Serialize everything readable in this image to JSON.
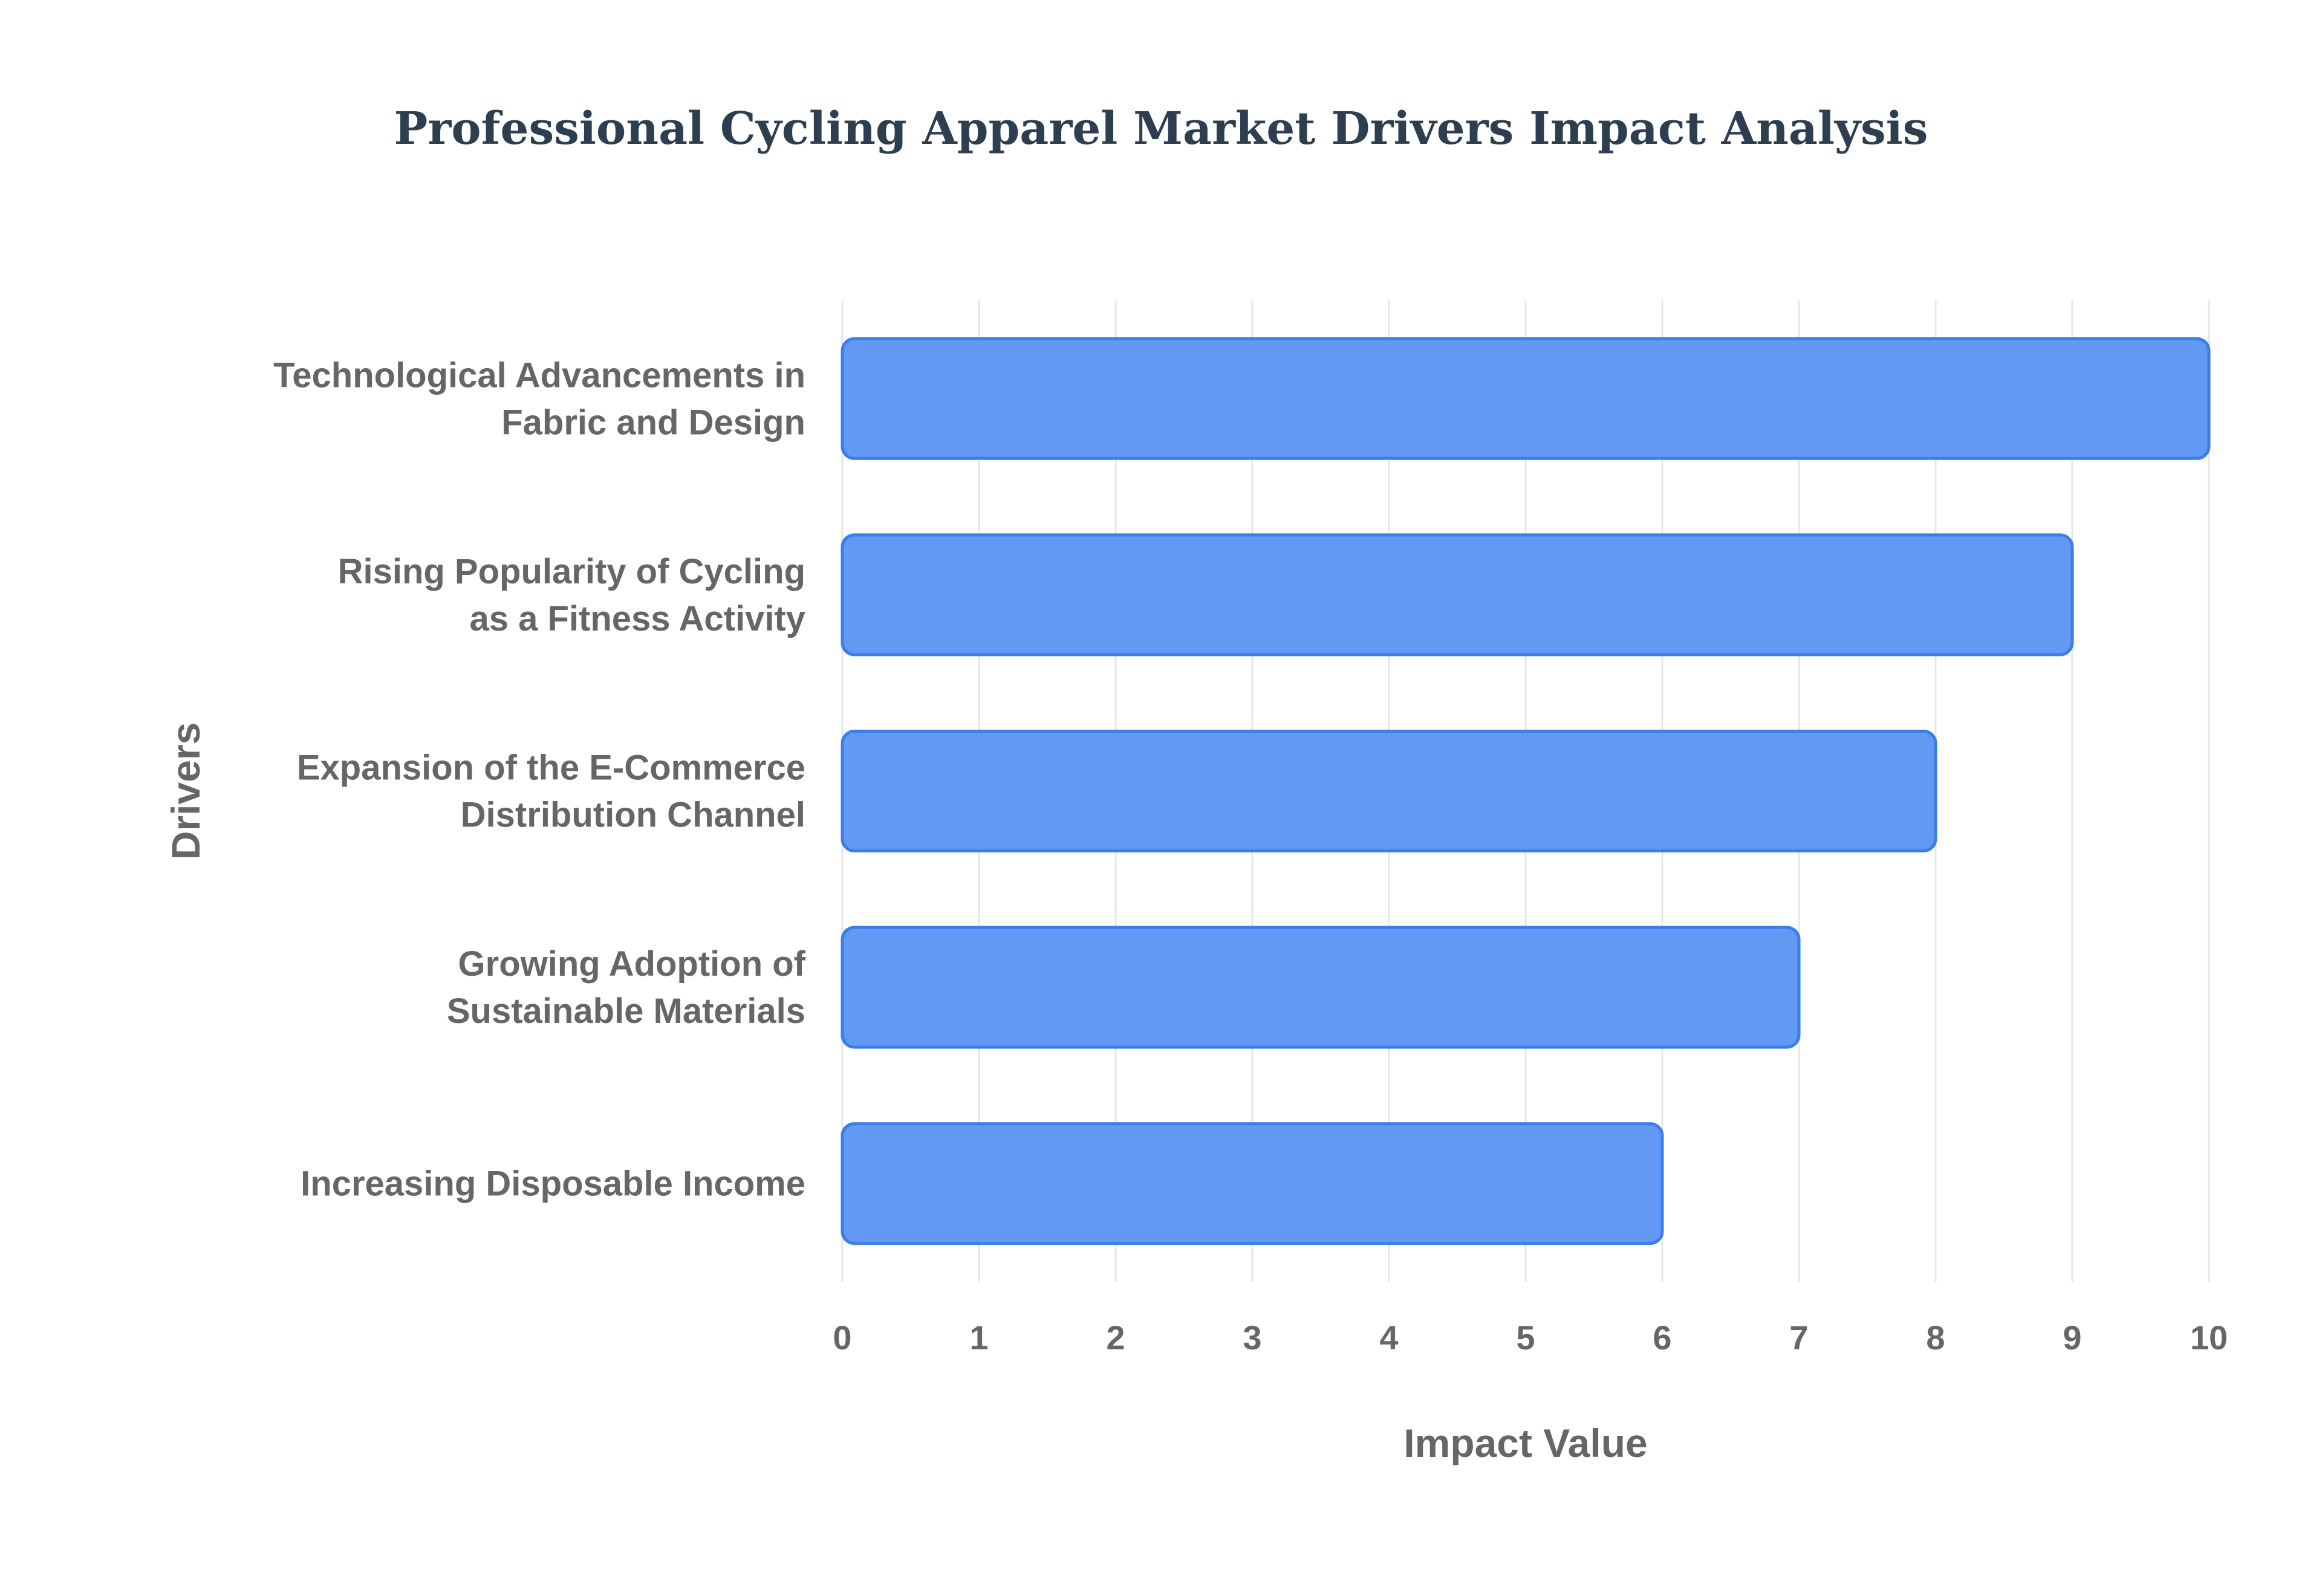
{
  "chart_data": {
    "type": "bar",
    "orientation": "horizontal",
    "title": "Professional Cycling Apparel Market Drivers Impact Analysis",
    "xlabel": "Impact Value",
    "ylabel": "Drivers",
    "categories": [
      "Technological Advancements in\nFabric and Design",
      "Rising Popularity of Cycling\nas a Fitness Activity",
      "Expansion of the E-Commerce\nDistribution Channel",
      "Growing Adoption of\nSustainable Materials",
      "Increasing Disposable Income"
    ],
    "values": [
      10,
      9,
      8,
      7,
      6
    ],
    "xlim": [
      0,
      10
    ],
    "xticks": [
      "0",
      "1",
      "2",
      "3",
      "4",
      "5",
      "6",
      "7",
      "8",
      "9",
      "10"
    ],
    "grid": true,
    "bar_color": "#6199f5",
    "bar_edge_color": "#3b7de9",
    "grid_color": "#e6e6e6",
    "text_color": "#666666",
    "title_color": "#2c3e50"
  }
}
